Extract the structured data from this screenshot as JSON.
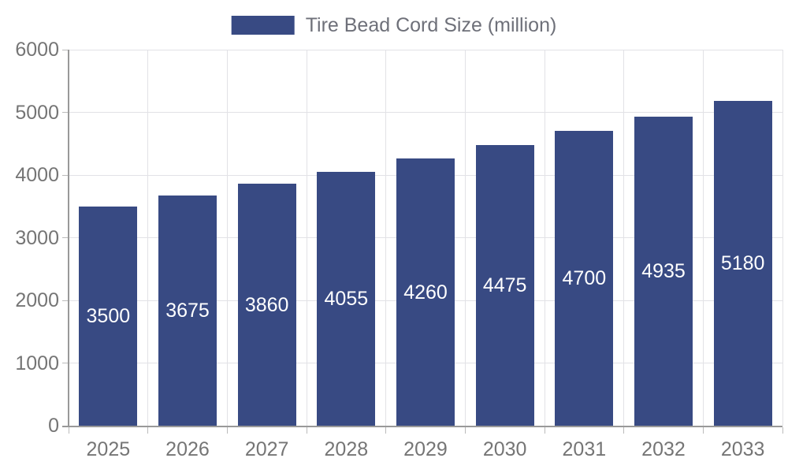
{
  "legend": {
    "label": "Tire Bead Cord Size (million)",
    "swatch_color": "#384A83"
  },
  "chart_data": {
    "type": "bar",
    "title": "Tire Bead Cord Size (million)",
    "series_name": "Tire Bead Cord Size (million)",
    "categories": [
      "2025",
      "2026",
      "2027",
      "2028",
      "2029",
      "2030",
      "2031",
      "2032",
      "2033"
    ],
    "values": [
      3500,
      3675,
      3860,
      4055,
      4260,
      4475,
      4700,
      4935,
      5180
    ],
    "xlabel": "",
    "ylabel": "",
    "ylim": [
      0,
      6000
    ],
    "yticks": [
      0,
      1000,
      2000,
      3000,
      4000,
      5000,
      6000
    ],
    "grid": true,
    "legend_position": "top",
    "bar_color": "#384A83",
    "value_label_color": "#ffffff"
  },
  "colors": {
    "bar": "#384A83",
    "axis_label": "#757575",
    "legend_text": "#6E7079",
    "grid_line": "#e2e2e6",
    "axis_line": "#999999",
    "tick_mark": "#bbbbbb",
    "background": "#ffffff"
  }
}
